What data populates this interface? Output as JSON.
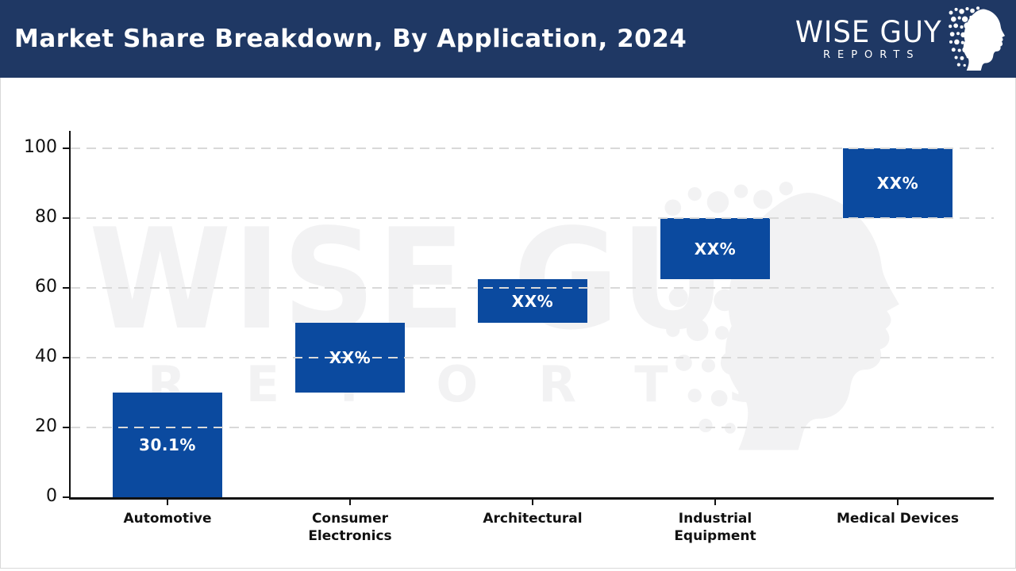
{
  "header": {
    "title": "Market Share Breakdown, By Application, 2024",
    "logo": {
      "line1": "WISE GUY",
      "line2": "REPORTS"
    }
  },
  "watermark": {
    "line1": "WISE GUY",
    "line2": "REPORTS"
  },
  "colors": {
    "header_bg": "#1f3864",
    "bar": "#0b4a9f",
    "grid": "#d9d9d9",
    "axis": "#111111",
    "watermark": "#f2f2f3"
  },
  "chart_data": {
    "type": "bar",
    "subtype": "waterfall",
    "title": "Market Share Breakdown, By Application, 2024",
    "xlabel": "",
    "ylabel": "",
    "ylim": [
      0,
      105
    ],
    "y_ticks": [
      0,
      20,
      40,
      60,
      80,
      100
    ],
    "grid": true,
    "legend": false,
    "bar_color": "#0b4a9f",
    "categories": [
      "Automotive",
      "Consumer Electronics",
      "Architectural",
      "Industrial Equipment",
      "Medical Devices"
    ],
    "segments": [
      {
        "category": "Automotive",
        "start": 0,
        "end": 30.1,
        "label": "30.1%"
      },
      {
        "category": "Consumer Electronics",
        "start": 30.1,
        "end": 50,
        "label": "XX%"
      },
      {
        "category": "Architectural",
        "start": 50,
        "end": 62.5,
        "label": "XX%"
      },
      {
        "category": "Industrial Equipment",
        "start": 62.5,
        "end": 80,
        "label": "XX%"
      },
      {
        "category": "Medical Devices",
        "start": 80,
        "end": 100,
        "label": "XX%"
      }
    ]
  }
}
